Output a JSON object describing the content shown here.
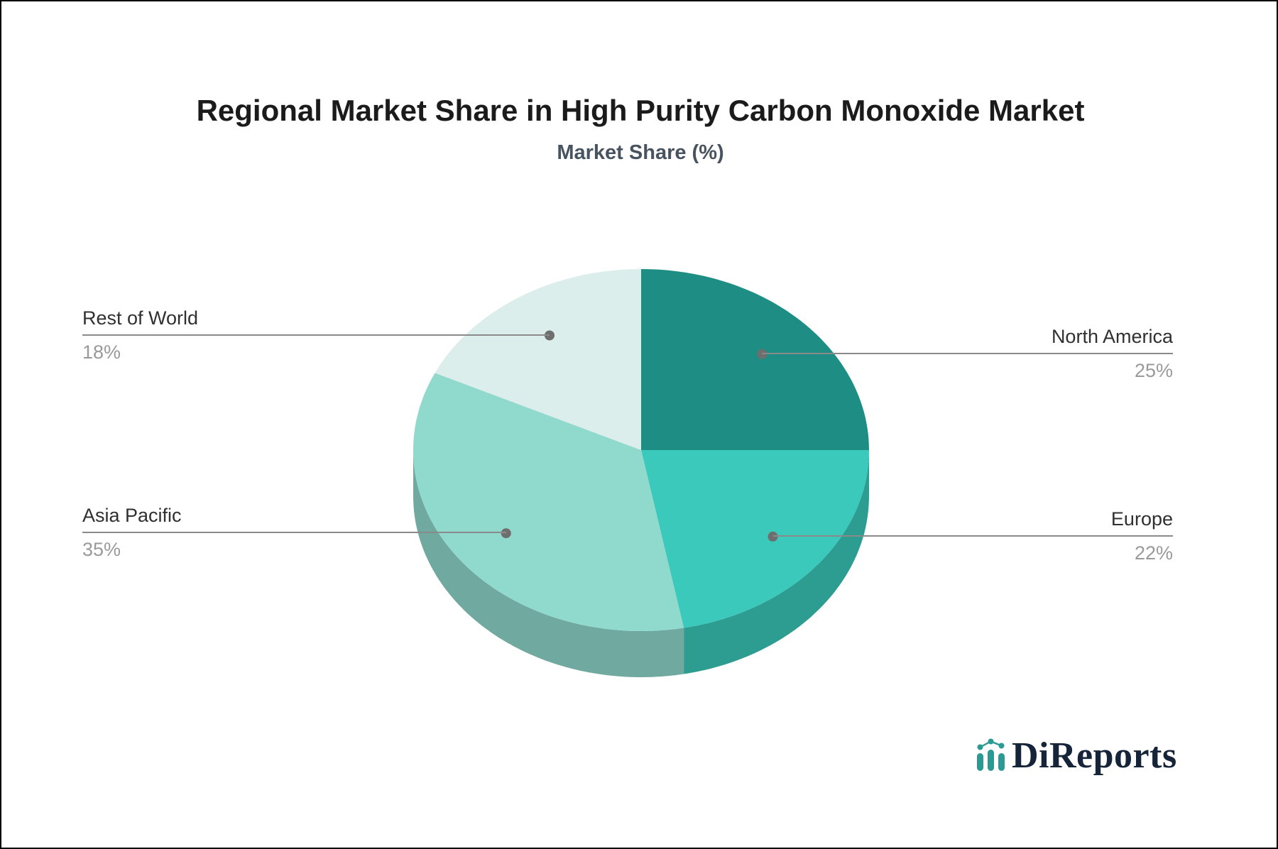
{
  "header": {
    "title": "Regional Market Share in High Purity Carbon Monoxide Market",
    "subtitle": "Market Share (%)"
  },
  "chart_data": {
    "type": "pie",
    "title": "Regional Market Share in High Purity Carbon Monoxide Market",
    "subtitle": "Market Share (%)",
    "unit": "%",
    "effect": "3d",
    "start_angle_deg": 0,
    "direction": "clockwise",
    "legend_position": "callout-labels",
    "slices": [
      {
        "label": "North America",
        "value": 25,
        "value_label": "25%",
        "color": "#1e8e84",
        "callout_side": "right"
      },
      {
        "label": "Europe",
        "value": 22,
        "value_label": "22%",
        "color": "#3ac9ba",
        "callout_side": "right"
      },
      {
        "label": "Asia Pacific",
        "value": 35,
        "value_label": "35%",
        "color": "#90d9cd",
        "callout_side": "left"
      },
      {
        "label": "Rest of World",
        "value": 18,
        "value_label": "18%",
        "color": "#dceeeb",
        "callout_side": "left"
      }
    ]
  },
  "branding": {
    "logo_text": "DiReports",
    "logo_icon": "bar-chart-trend-icon",
    "logo_text_color": "#16243a",
    "logo_icon_color": "#2b9a94"
  },
  "style": {
    "leader_line_color": "#8a8a8a",
    "leader_dot_color": "#6e6e6e",
    "label_name_color": "#303030",
    "label_value_color": "#9a9a9a",
    "title_color": "#1b1b1b",
    "subtitle_color": "#47535f",
    "background_color": "#ffffff"
  }
}
